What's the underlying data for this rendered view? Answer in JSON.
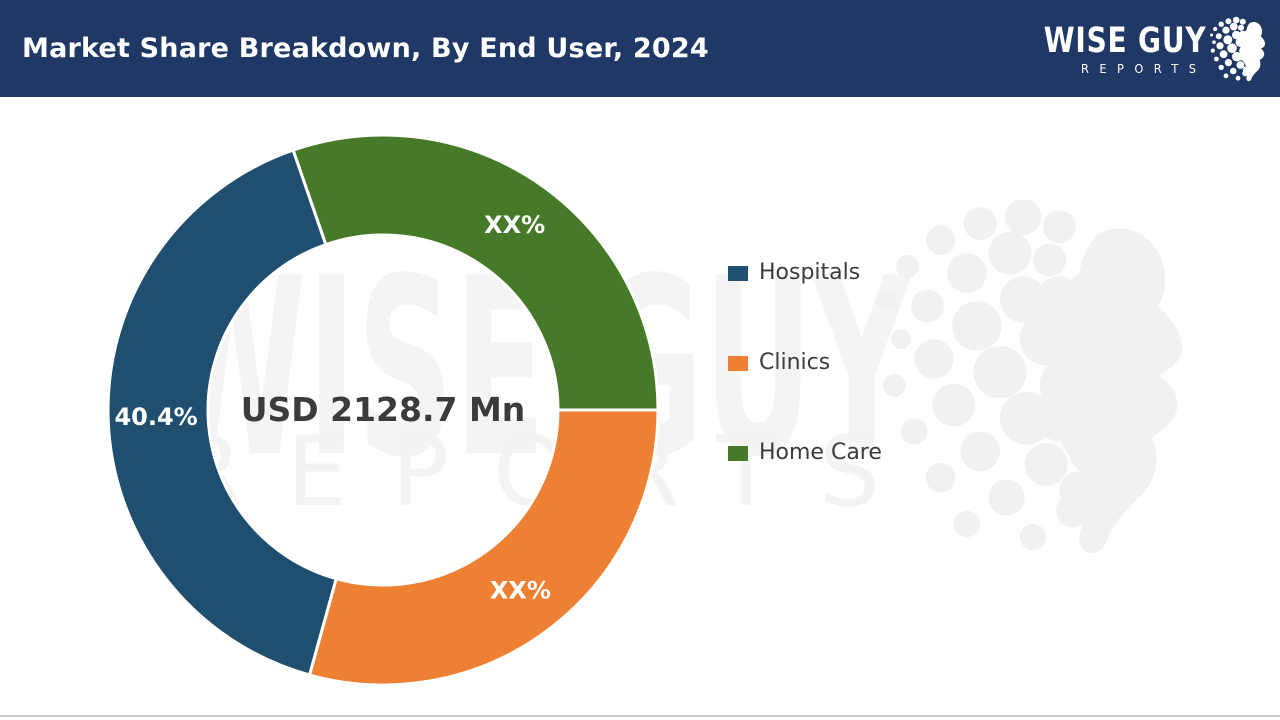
{
  "header": {
    "title": "Market Share Breakdown, By End User, 2024",
    "logo": {
      "line1": "WISE GUY",
      "line2": "REPORTS"
    }
  },
  "watermark": {
    "line1": "WISE GUY",
    "line2": "REPORTS"
  },
  "colors": {
    "header_bg": "#203866",
    "hospitals_blue": "#1f4e6e",
    "clinics_orange": "#ed8033",
    "home_care_green": "#467a28"
  },
  "chart_data": {
    "type": "pie",
    "subtype": "donut",
    "title": "Market Share Breakdown, By End User, 2024",
    "center_label": "USD 2128.7 Mn",
    "start_angle_deg": 0,
    "direction": "counterclockwise",
    "series": [
      {
        "name": "Home Care",
        "share_pct": 30.3,
        "display_label": "XX%",
        "color": "#467a28"
      },
      {
        "name": "Hospitals",
        "share_pct": 40.4,
        "display_label": "40.4%",
        "color": "#1f4e6e"
      },
      {
        "name": "Clinics",
        "share_pct": 29.3,
        "display_label": "XX%",
        "color": "#ed8033"
      }
    ],
    "legend": {
      "position": "right",
      "items": [
        "Hospitals",
        "Clinics",
        "Home Care"
      ]
    }
  }
}
